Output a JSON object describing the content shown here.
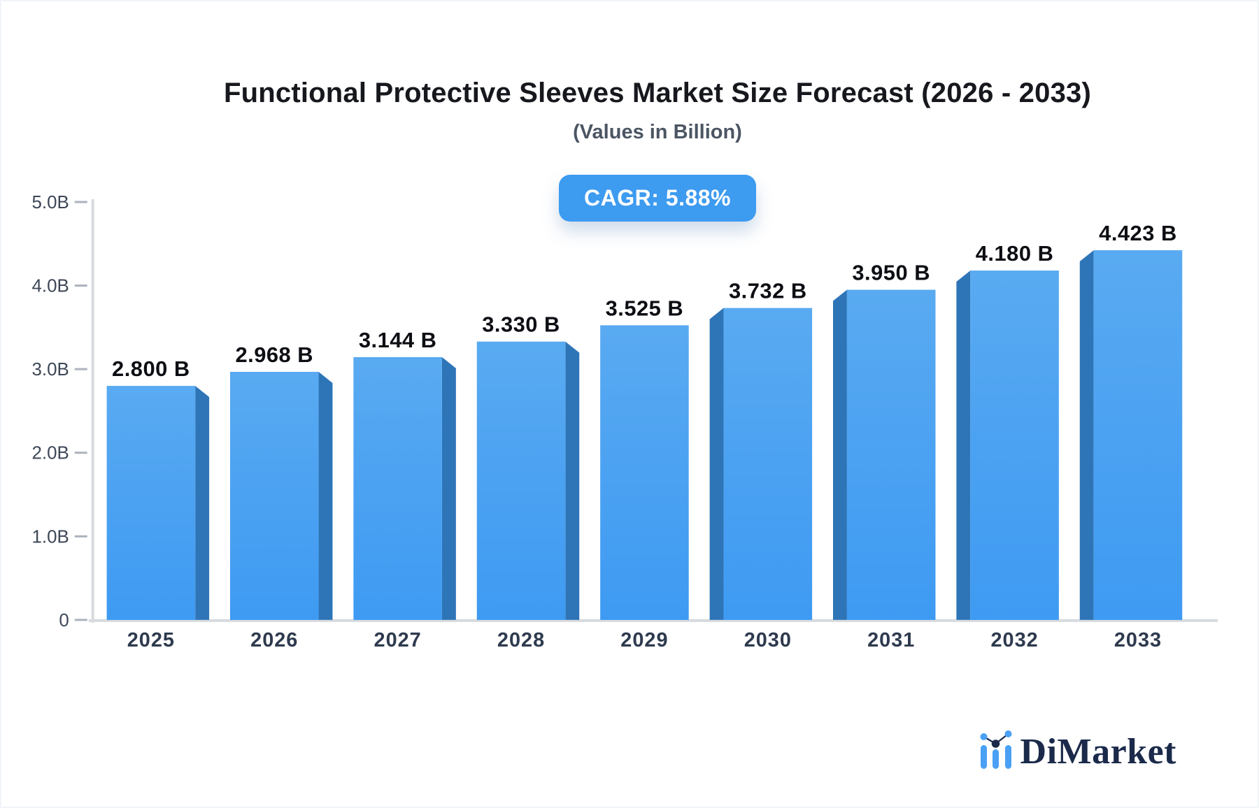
{
  "header": {
    "title": "Functional Protective Sleeves Market Size Forecast (2026 - 2033)",
    "subtitle": "(Values in Billion)"
  },
  "badge": {
    "label": "CAGR: 5.88%",
    "color": "#3d9bf0"
  },
  "chart_data": {
    "type": "bar",
    "title": "Functional Protective Sleeves Market Size Forecast (2026 - 2033)",
    "subtitle": "(Values in Billion)",
    "cagr": "5.88%",
    "categories": [
      "2025",
      "2026",
      "2027",
      "2028",
      "2029",
      "2030",
      "2031",
      "2032",
      "2033"
    ],
    "values": [
      2.8,
      2.968,
      3.144,
      3.33,
      3.525,
      3.732,
      3.95,
      4.18,
      4.423
    ],
    "value_labels": [
      "2.800 B",
      "2.968 B",
      "3.144 B",
      "3.330 B",
      "3.525 B",
      "3.732 B",
      "3.950 B",
      "4.180 B",
      "4.423 B"
    ],
    "unit": "B",
    "ylim": [
      0,
      5
    ],
    "y_ticks": [
      {
        "label": "5.0B",
        "value": 5.0
      },
      {
        "label": "4.0B",
        "value": 4.0
      },
      {
        "label": "3.0B",
        "value": 3.0
      },
      {
        "label": "2.0B",
        "value": 2.0
      },
      {
        "label": "1.0B",
        "value": 1.0
      },
      {
        "label": "0",
        "value": 0.0
      }
    ],
    "grid": false,
    "legend": false,
    "style_3d": "center-perspective",
    "bar_color_top": "#59aaf1",
    "bar_color_bottom": "#3e9af2",
    "bar_side_color": "#2e75b8",
    "axis_color": "#d7dade",
    "tick_color": "#abb2bc",
    "value_label_color": "#0c0e13",
    "axis_label_color": "#3d4757",
    "category_label_color": "#2e3a4e"
  },
  "logo": {
    "text": "DiMarket",
    "icon": "mini-bar-chart-icon",
    "text_color": "#1b2a4a",
    "icon_color": "#4aa0f4",
    "icon_accent_color": "#1b2a4a"
  }
}
